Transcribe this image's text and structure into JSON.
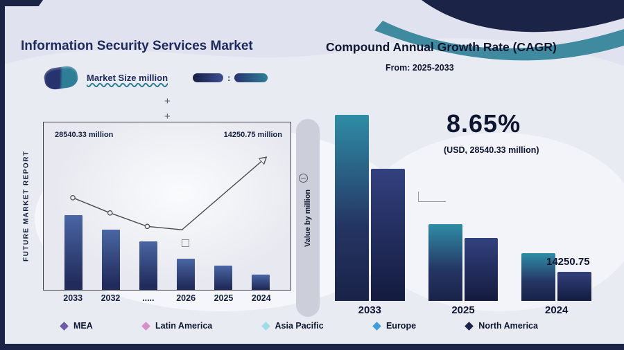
{
  "header": {
    "left_title": "Information Security Services Market",
    "right_title": "Compound Annual Growth Rate (CAGR)",
    "right_subtitle": "From: 2025-2033"
  },
  "top_legend": {
    "label": "Market Size million",
    "separator": ":"
  },
  "cagr": {
    "value": "8.65%",
    "detail": "(USD, 28540.33 million)"
  },
  "left_chart_labels": {
    "top_left": "28540.33 million",
    "top_right": "14250.75 million",
    "side": "FUTURE MARKET REPORT"
  },
  "right_chart_labels": {
    "side": "Value by million",
    "annotation": "14250.75"
  },
  "region_legend": [
    {
      "label": "MEA",
      "color": "#6a5aa8"
    },
    {
      "label": "Latin America",
      "color": "#d78fc5"
    },
    {
      "label": "Asia Pacific",
      "color": "#9fdbe9"
    },
    {
      "label": "Europe",
      "color": "#3e9ed9"
    },
    {
      "label": "North America",
      "color": "#1b2447"
    }
  ],
  "colors": {
    "navy": "#1b2447",
    "teal": "#2e7f96"
  },
  "chart_data": [
    {
      "type": "bar",
      "title": "Information Security Services Market",
      "ylabel": "FUTURE MARKET REPORT",
      "categories": [
        "2033",
        "2032",
        ".....",
        "2026",
        "2025",
        "2024"
      ],
      "values": [
        100,
        81,
        65,
        42,
        32,
        20
      ],
      "values_note": "relative bar heights, no numeric axis shown; market grows from 14250.75 million (2024) to 28540.33 million (2033)",
      "ylim": [
        0,
        100
      ],
      "annotations": [
        "28540.33 million",
        "14250.75 million"
      ],
      "trend_line_pct": [
        [
          12,
          45
        ],
        [
          27,
          54
        ],
        [
          42,
          62
        ],
        [
          56,
          64
        ],
        [
          90,
          21
        ]
      ],
      "grid": false,
      "legend_position": "top-left"
    },
    {
      "type": "bar",
      "title": "Compound Annual Growth Rate (CAGR)",
      "subtitle": "From: 2025-2033",
      "ylabel": "Value by million",
      "categories": [
        "2033",
        "2025",
        "2024"
      ],
      "series": [
        {
          "name": "series-1",
          "values": [
            97,
            40,
            25
          ]
        },
        {
          "name": "series-2",
          "values": [
            69,
            33,
            15
          ]
        }
      ],
      "series_note": "relative bar heights, no numeric axis shown; CAGR 8.65%, 2024 value 14250.75",
      "ylim": [
        0,
        100
      ],
      "annotations": [
        "8.65%",
        "(USD, 28540.33 million)",
        "14250.75"
      ],
      "grid": false
    }
  ]
}
